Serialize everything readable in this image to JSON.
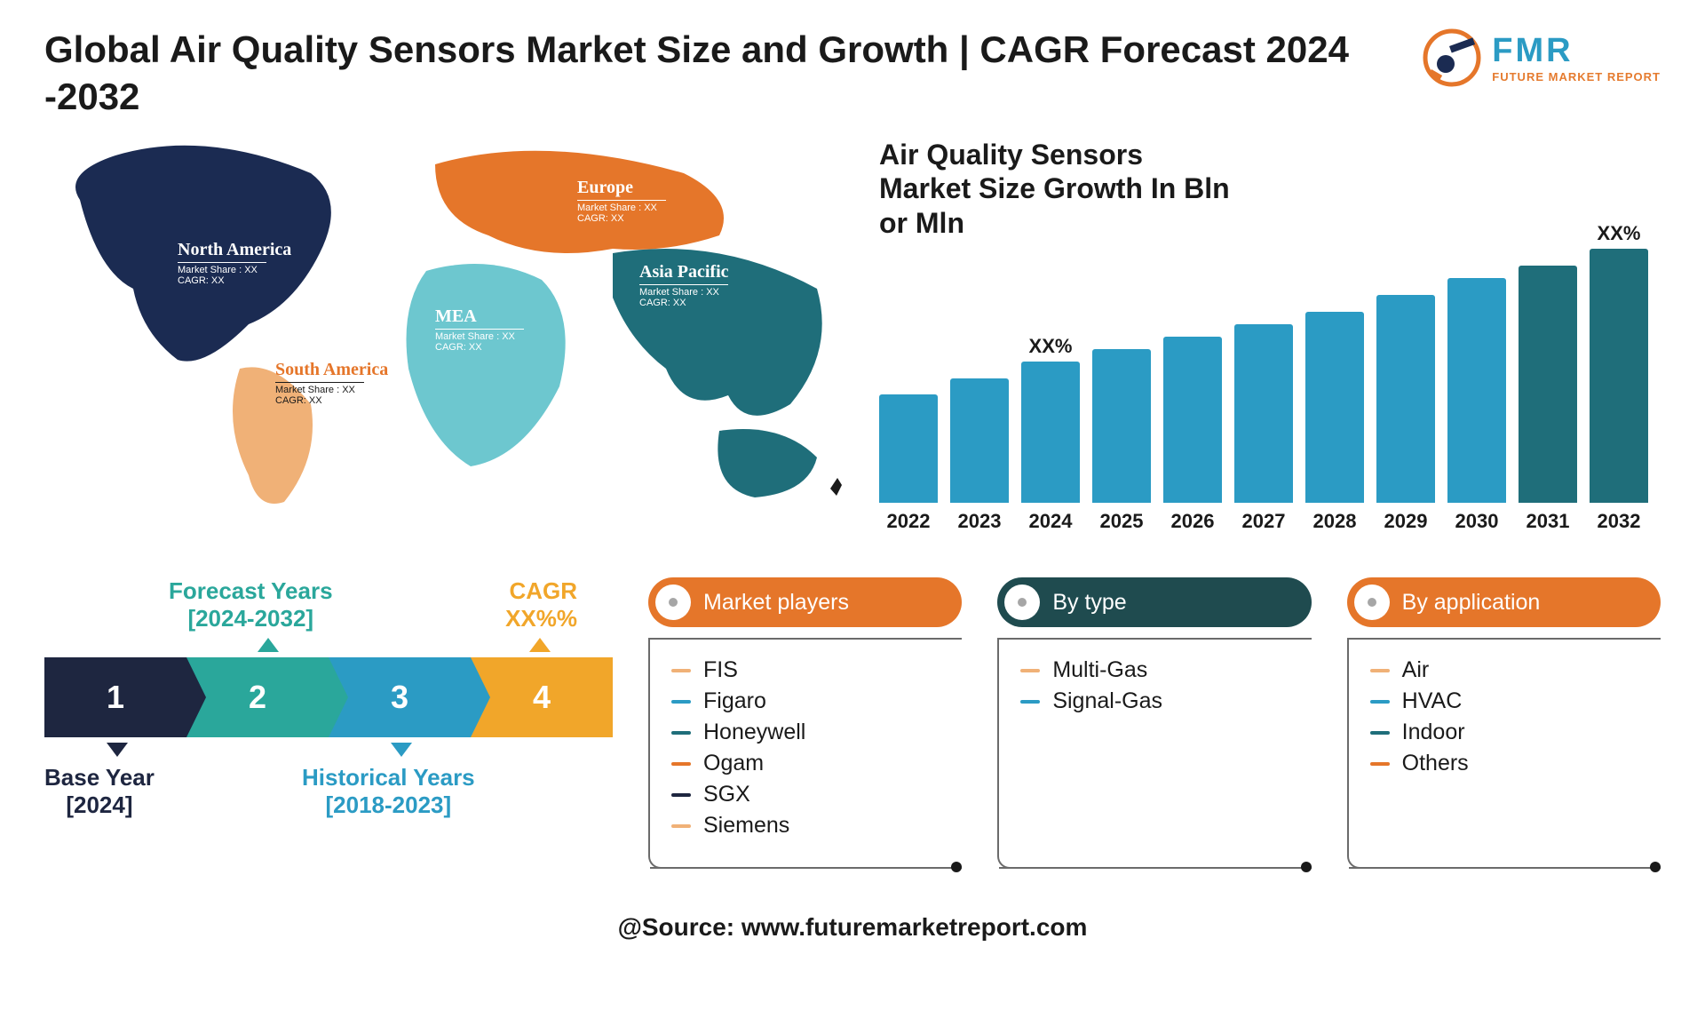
{
  "title": "Global Air Quality Sensors Market Size and Growth | CAGR Forecast 2024 -2032",
  "logo": {
    "fmr": "FMR",
    "sub": "FUTURE MARKET REPORT"
  },
  "map": {
    "regions": {
      "north_america": {
        "name": "North America",
        "share": "Market Share : XX",
        "cagr": "CAGR: XX",
        "color": "#1b2b52"
      },
      "south_america": {
        "name": "South America",
        "share": "Market Share : XX",
        "cagr": "CAGR: XX",
        "color": "#f0b177"
      },
      "europe": {
        "name": "Europe",
        "share": "Market Share : XX",
        "cagr": "CAGR: XX",
        "color": "#e5762a"
      },
      "mea": {
        "name": "MEA",
        "share": "Market Share : XX",
        "cagr": "CAGR: XX",
        "color": "#6dc7cf"
      },
      "asia_pacific": {
        "name": "Asia Pacific",
        "share": "Market Share : XX",
        "cagr": "CAGR: XX",
        "color": "#1f6e7a"
      }
    }
  },
  "chart": {
    "title": "Air Quality Sensors Market Size Growth In Bln or Mln",
    "bar_color": "#2b9bc4",
    "alt_bar_color": "#1f6e7a",
    "years": [
      "2022",
      "2023",
      "2024",
      "2025",
      "2026",
      "2027",
      "2028",
      "2029",
      "2030",
      "2031",
      "2032"
    ],
    "values": [
      130,
      150,
      170,
      185,
      200,
      215,
      230,
      250,
      270,
      285,
      305
    ],
    "max": 320,
    "annotations": {
      "2024": "XX%",
      "2032": "XX%"
    },
    "alt_indices": [
      9,
      10
    ]
  },
  "timeline": {
    "segments": [
      {
        "n": "1",
        "color": "#1e2640"
      },
      {
        "n": "2",
        "color": "#2aa79b"
      },
      {
        "n": "3",
        "color": "#2b9bc4"
      },
      {
        "n": "4",
        "color": "#f1a62a"
      }
    ],
    "labels": {
      "base": {
        "text1": "Base Year",
        "text2": "[2024]",
        "color": "#1e2640"
      },
      "forecast": {
        "text1": "Forecast Years",
        "text2": "[2024-2032]",
        "color": "#2aa79b"
      },
      "hist": {
        "text1": "Historical Years",
        "text2": "[2018-2023]",
        "color": "#2b9bc4"
      },
      "cagr": {
        "text1": "CAGR",
        "text2": "XX%%",
        "color": "#f1a62a"
      }
    }
  },
  "columns": {
    "players": {
      "label": "Market players",
      "pill_color": "#e5762a",
      "items": [
        {
          "text": "FIS",
          "color": "#f0b177"
        },
        {
          "text": "Figaro",
          "color": "#2b9bc4"
        },
        {
          "text": "Honeywell",
          "color": "#1f6e7a"
        },
        {
          "text": "Ogam",
          "color": "#e5762a"
        },
        {
          "text": "SGX",
          "color": "#1e2640"
        },
        {
          "text": "Siemens",
          "color": "#f0b177"
        }
      ]
    },
    "type": {
      "label": "By type",
      "pill_color": "#1f4b4f",
      "items": [
        {
          "text": "Multi-Gas",
          "color": "#f0b177"
        },
        {
          "text": "Signal-Gas",
          "color": "#2b9bc4"
        }
      ]
    },
    "application": {
      "label": "By application",
      "pill_color": "#e5762a",
      "items": [
        {
          "text": "Air",
          "color": "#f0b177"
        },
        {
          "text": "HVAC",
          "color": "#2b9bc4"
        },
        {
          "text": "Indoor",
          "color": "#1f6e7a"
        },
        {
          "text": "Others",
          "color": "#e5762a"
        }
      ]
    }
  },
  "source": "@Source: www.futuremarketreport.com"
}
